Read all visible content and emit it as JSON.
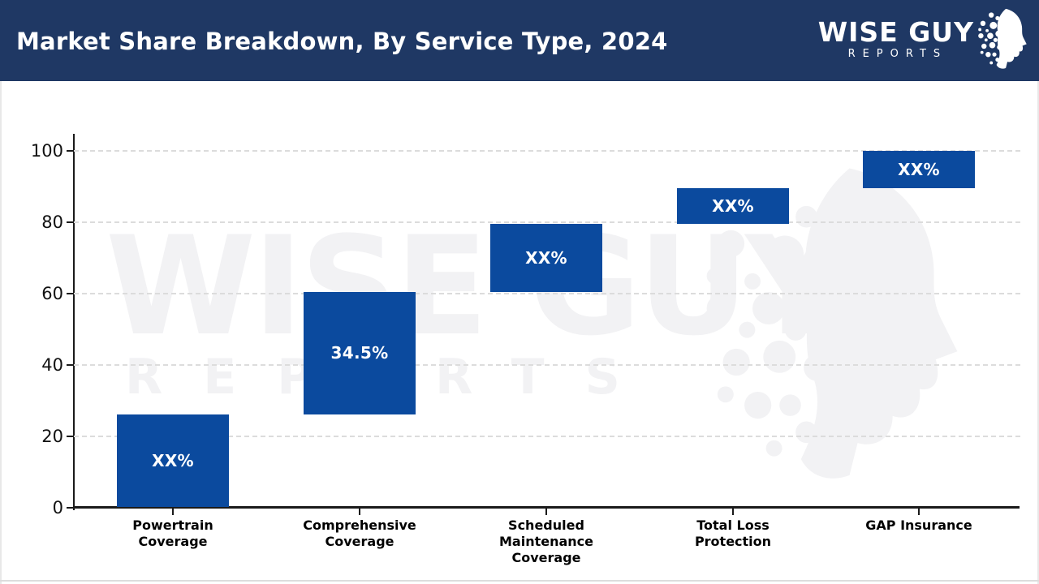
{
  "header": {
    "title": "Market Share Breakdown, By Service Type, 2024",
    "logo": {
      "line1": "WISE GUY",
      "line2": "REPORTS"
    }
  },
  "watermark": {
    "line1": "WISE GUY",
    "line2": "REPORTS"
  },
  "colors": {
    "header_bg": "#1f3864",
    "bar_fill": "#0b4a9e",
    "bar_label_text": "#ffffff",
    "gridline": "#dcdcdc",
    "axis": "#1a1a1a",
    "watermark": "#f2f2f4",
    "title_text": "#ffffff"
  },
  "chart_data": {
    "type": "bar",
    "subtype": "waterfall",
    "title": "Market Share Breakdown, By Service Type, 2024",
    "xlabel": "",
    "ylabel": "",
    "ylim": [
      0,
      100
    ],
    "yticks": [
      0,
      20,
      40,
      60,
      80,
      100
    ],
    "grid": "horizontal-dashed",
    "legend": "none",
    "categories": [
      "Powertrain Coverage",
      "Comprehensive Coverage",
      "Scheduled Maintenance Coverage",
      "Total Loss Protection",
      "GAP Insurance"
    ],
    "segments": [
      {
        "category": "Powertrain Coverage",
        "start": 0,
        "end": 26,
        "value": 26,
        "label": "XX%"
      },
      {
        "category": "Comprehensive Coverage",
        "start": 26,
        "end": 60.5,
        "value": 34.5,
        "label": "34.5%"
      },
      {
        "category": "Scheduled Maintenance Coverage",
        "start": 60.5,
        "end": 79.5,
        "value": 19,
        "label": "XX%"
      },
      {
        "category": "Total Loss Protection",
        "start": 79.5,
        "end": 89.5,
        "value": 10,
        "label": "XX%"
      },
      {
        "category": "GAP Insurance",
        "start": 89.5,
        "end": 100,
        "value": 10.5,
        "label": "XX%"
      }
    ]
  }
}
